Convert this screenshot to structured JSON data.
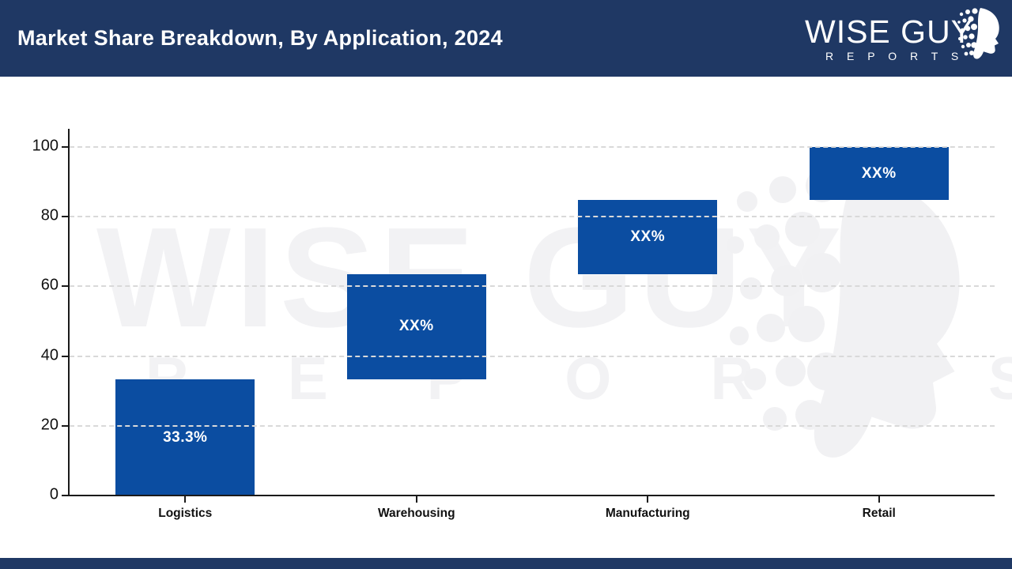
{
  "header": {
    "title": "Market Share Breakdown, By Application, 2024",
    "logo": {
      "line1": "WISE GUY",
      "line2": "R E P O R T S"
    }
  },
  "watermark": {
    "line1": "WISE GUY",
    "line2": "R E P O R T S"
  },
  "chart_data": {
    "type": "bar",
    "variant": "floating-waterfall",
    "title": "Market Share Breakdown, By Application, 2024",
    "categories": [
      "Logistics",
      "Warehousing",
      "Manufacturing",
      "Retail"
    ],
    "segments": [
      {
        "category": "Logistics",
        "start": 0,
        "end": 33.3,
        "label": "33.3%"
      },
      {
        "category": "Warehousing",
        "start": 33.3,
        "end": 63.6,
        "label": "XX%"
      },
      {
        "category": "Manufacturing",
        "start": 63.6,
        "end": 84.8,
        "label": "XX%"
      },
      {
        "category": "Retail",
        "start": 84.8,
        "end": 100,
        "label": "XX%"
      }
    ],
    "ylim": [
      0,
      100
    ],
    "yticks": [
      0,
      20,
      40,
      60,
      80,
      100
    ],
    "grid": "horizontal-dashed",
    "legend": "none",
    "xlabel": "",
    "ylabel": "",
    "bar_color": "#0b4da1",
    "bar_label_color": "#ffffff"
  },
  "colors": {
    "header_bg": "#1f3864",
    "footer_bg": "#1f3864",
    "bar": "#0b4da1",
    "grid": "#d9d9d9",
    "axis": "#1a1a1a",
    "watermark": "#f2f2f4",
    "title_text": "#ffffff"
  }
}
